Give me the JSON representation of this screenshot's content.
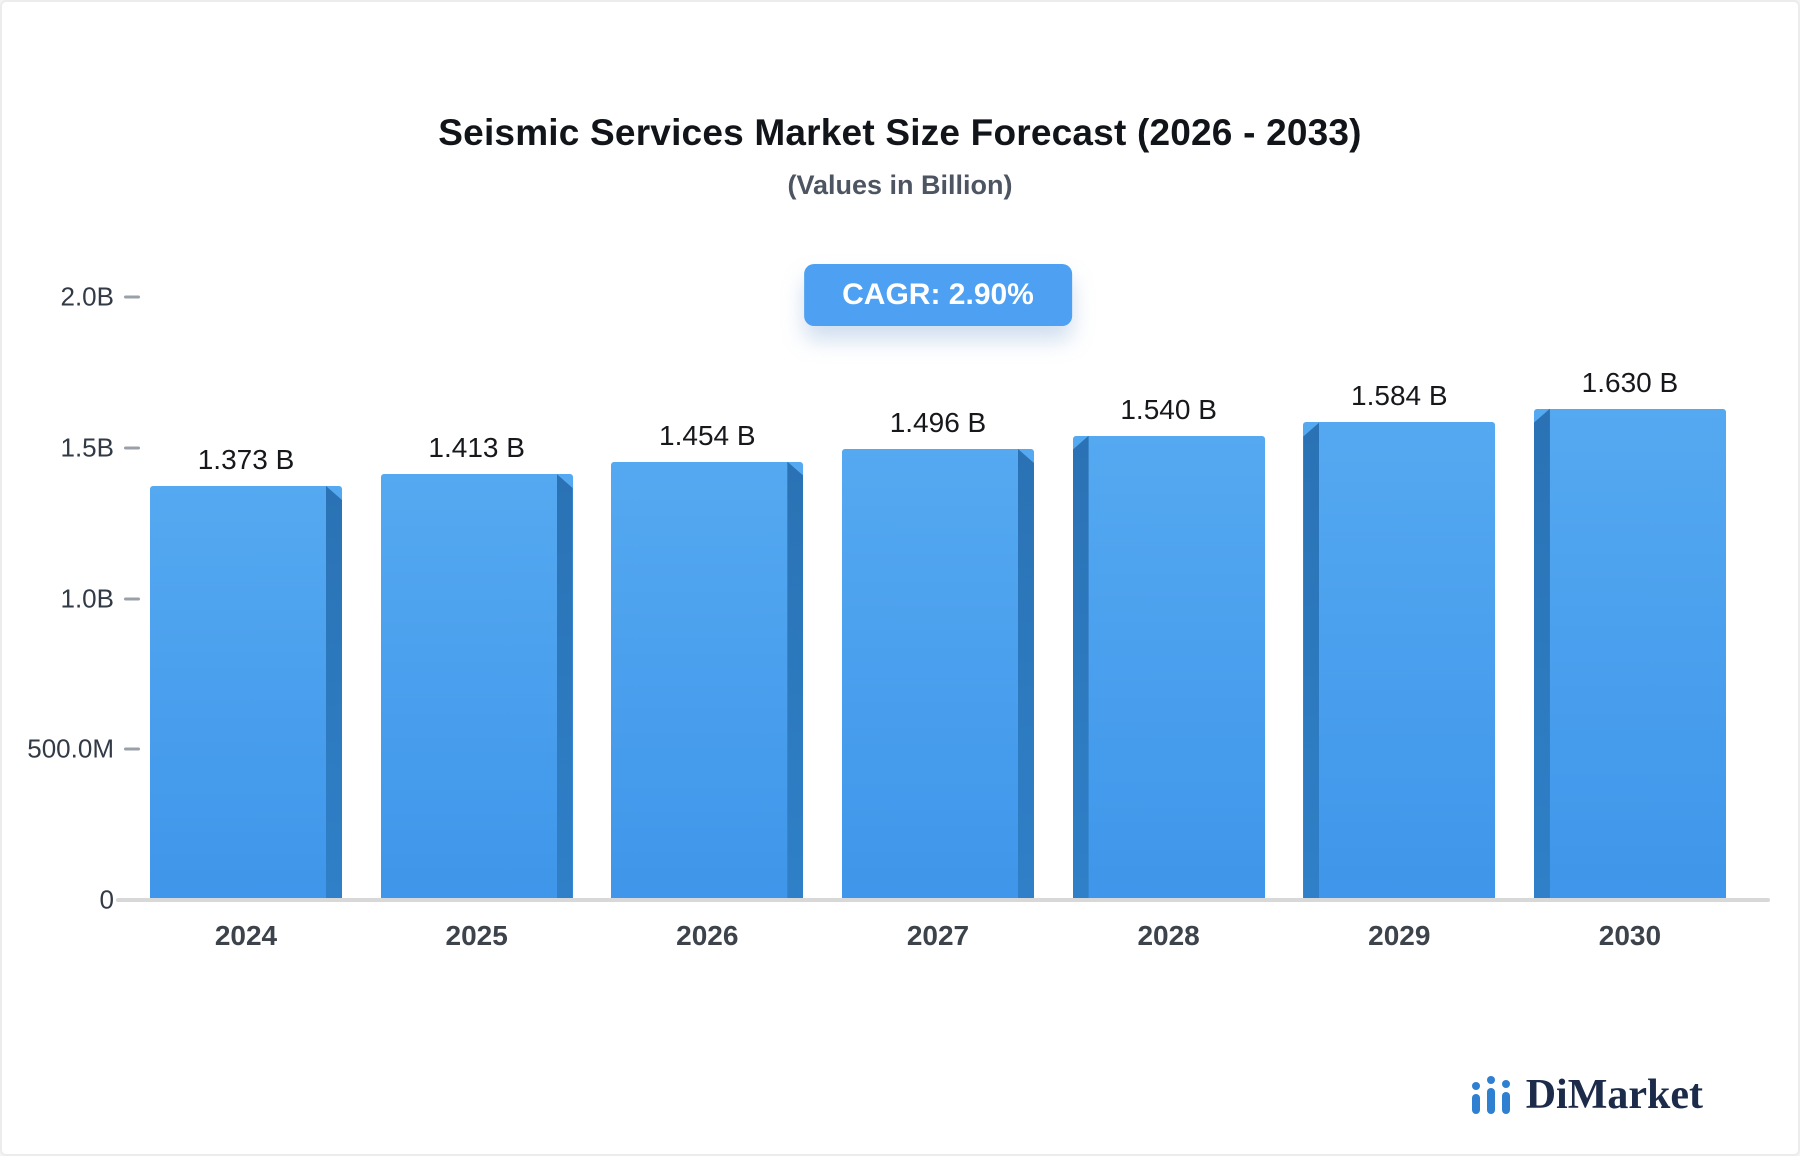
{
  "header": {
    "title": "Seismic Services Market Size Forecast (2026 - 2033)",
    "subtitle": "(Values in Billion)"
  },
  "cagr_badge": {
    "label": "CAGR: 2.90%"
  },
  "chart_data": {
    "type": "bar",
    "categories": [
      "2024",
      "2025",
      "2026",
      "2027",
      "2028",
      "2029",
      "2030"
    ],
    "values": [
      1.373,
      1.413,
      1.454,
      1.496,
      1.54,
      1.584,
      1.63
    ],
    "value_labels": [
      "1.373 B",
      "1.413 B",
      "1.454 B",
      "1.496 B",
      "1.540 B",
      "1.584 B",
      "1.630 B"
    ],
    "title": "Seismic Services Market Size Forecast (2026 - 2033)",
    "xlabel": "",
    "ylabel": "",
    "ylim": [
      0,
      2.0
    ],
    "ytick_values": [
      2.0,
      1.5,
      1.0,
      0.5,
      0
    ],
    "ytick_labels": [
      "2.0B",
      "1.5B",
      "1.0B",
      "500.0M",
      "0"
    ],
    "grid": false,
    "legend": false,
    "colors": {
      "bar_top": "#55a9f1",
      "bar_bottom": "#3f96ea",
      "bar_side": "#2a72b4",
      "badge": "#4da0f2",
      "axis_line": "#d8d8d8"
    }
  },
  "footer": {
    "brand": "DiMarket",
    "logo_icon": "bar-chart-icon"
  }
}
